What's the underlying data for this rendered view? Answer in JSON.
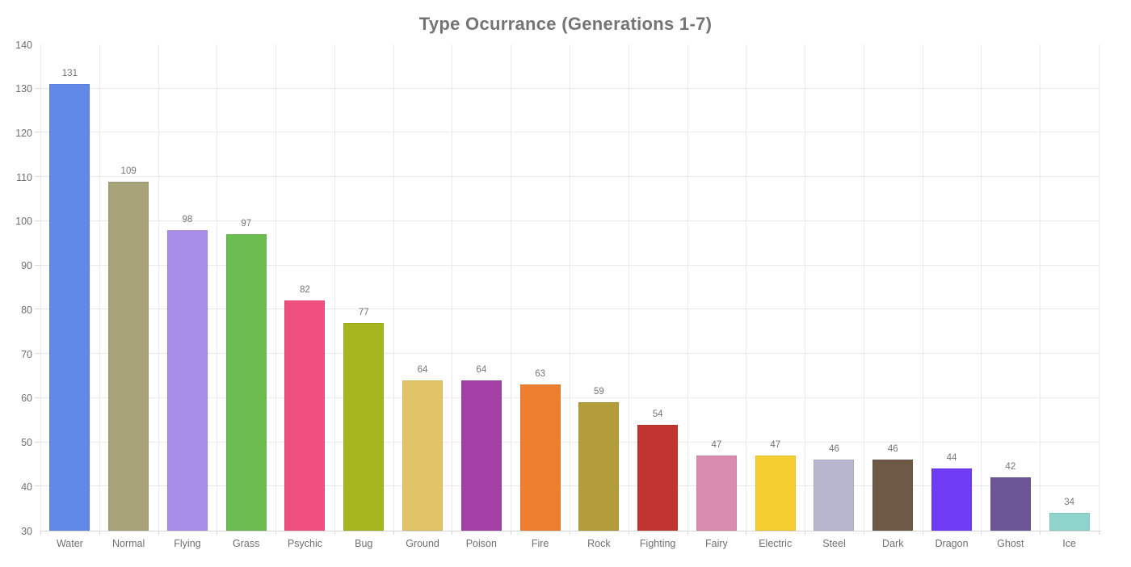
{
  "title": "Type Ocurrance (Generations 1-7)",
  "chart_data": {
    "type": "bar",
    "title": "Type Ocurrance (Generations 1-7)",
    "xlabel": "",
    "ylabel": "",
    "categories": [
      "Water",
      "Normal",
      "Flying",
      "Grass",
      "Psychic",
      "Bug",
      "Ground",
      "Poison",
      "Fire",
      "Rock",
      "Fighting",
      "Fairy",
      "Electric",
      "Steel",
      "Dark",
      "Dragon",
      "Ghost",
      "Ice"
    ],
    "values": [
      131,
      109,
      98,
      97,
      82,
      77,
      64,
      64,
      63,
      59,
      54,
      47,
      47,
      46,
      46,
      44,
      42,
      34
    ],
    "bar_colors": [
      "#6089e8",
      "#a8a379",
      "#a98ee9",
      "#6cbd4f",
      "#ef4f7e",
      "#a7b51f",
      "#e2c468",
      "#a43fa6",
      "#ee7f2f",
      "#b39d3a",
      "#c23430",
      "#d98cb0",
      "#f5cf31",
      "#b6b7cf",
      "#6e5846",
      "#6f3bf5",
      "#6b5596",
      "#8fd5cd"
    ],
    "ylim": [
      30,
      140
    ],
    "yticks": [
      30,
      40,
      50,
      60,
      70,
      80,
      90,
      100,
      110,
      120,
      130,
      140
    ],
    "grid": true,
    "legend": "none",
    "value_labels_shown": true
  },
  "colors": {
    "background": "#ffffff",
    "title_text": "#747474",
    "tick_text": "#6f6f6f",
    "value_label_text": "#757575",
    "gridline": "#e9e9e9",
    "axis_line": "#d6d6d6"
  }
}
